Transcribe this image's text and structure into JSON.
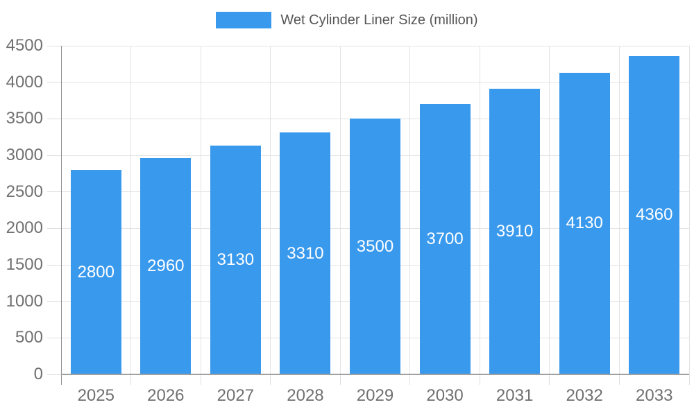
{
  "chart_data": {
    "type": "bar",
    "title": "",
    "legend_label": "Wet Cylinder Liner Size (million)",
    "legend_position": "top-center",
    "categories": [
      "2025",
      "2026",
      "2027",
      "2028",
      "2029",
      "2030",
      "2031",
      "2032",
      "2033"
    ],
    "values": [
      2800,
      2960,
      3130,
      3310,
      3500,
      3700,
      3910,
      4130,
      4360
    ],
    "bar_labels": [
      "2800",
      "2960",
      "3130",
      "3310",
      "3500",
      "3700",
      "3910",
      "4130",
      "4360"
    ],
    "y_ticks": [
      "0",
      "500",
      "1000",
      "1500",
      "2000",
      "2500",
      "3000",
      "3500",
      "4000",
      "4500"
    ],
    "ylim": [
      0,
      4500
    ],
    "y_tick_step": 500,
    "grid": true,
    "colors": {
      "bar": "#3999ed",
      "bar_value_text": "#ffffff",
      "axis_label_text": "#707070",
      "legend_text": "#555555",
      "gridline": "#e3e3e3",
      "tick": "#dedede",
      "axis_line": "#8c8c8c",
      "baseline": "#a0a0a0"
    }
  }
}
